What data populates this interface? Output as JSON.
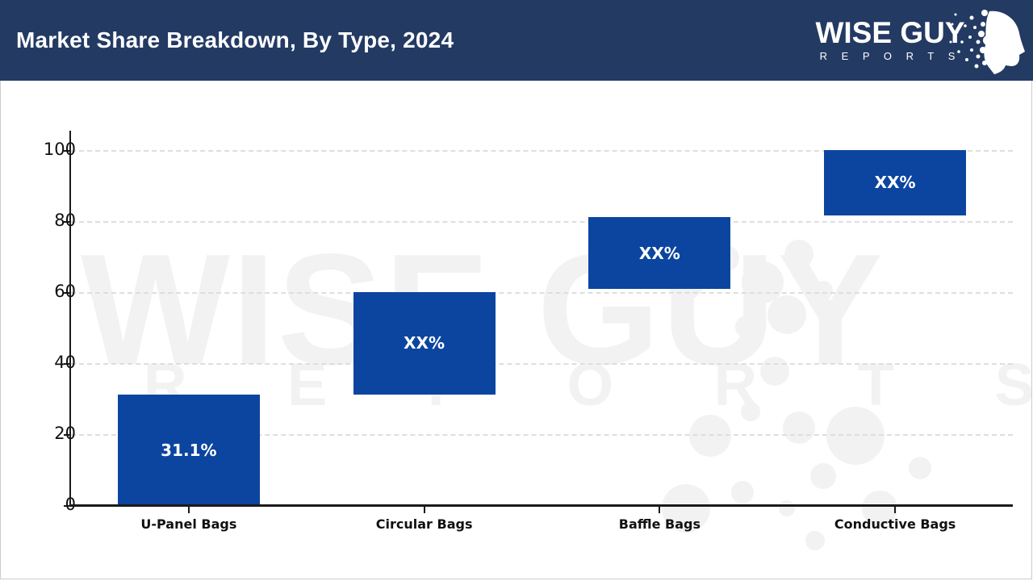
{
  "header": {
    "title": "Market Share Breakdown, By Type, 2024",
    "logo": {
      "line1": "WISE GUY",
      "line2": "R E P O R T S"
    }
  },
  "watermark": {
    "line1": "WISE GUY",
    "line2": "R E P O R T S"
  },
  "colors": {
    "header_bg": "#233a63",
    "bar": "#0b45a0",
    "grid": "#dedede",
    "watermark": "#f2f2f2",
    "axis": "#1a1a1a",
    "bar_label": "#ffffff"
  },
  "chart_data": {
    "type": "bar",
    "subtype": "waterfall",
    "title": "Market Share Breakdown, By Type, 2024",
    "xlabel": "",
    "ylabel": "",
    "categories": [
      "U-Panel Bags",
      "Circular Bags",
      "Baffle Bags",
      "Conductive Bags"
    ],
    "segments": [
      {
        "category": "U-Panel Bags",
        "start": 0,
        "end": 31.1,
        "label": "31.1%"
      },
      {
        "category": "Circular Bags",
        "start": 31.1,
        "end": 60.1,
        "label": "XX%"
      },
      {
        "category": "Baffle Bags",
        "start": 60.8,
        "end": 81.2,
        "label": "XX%"
      },
      {
        "category": "Conductive Bags",
        "start": 81.6,
        "end": 100,
        "label": "XX%"
      }
    ],
    "yticks": [
      0,
      20,
      40,
      60,
      80,
      100
    ],
    "ylim": [
      0,
      105
    ],
    "grid": "horizontal-dashed",
    "legend_position": "none"
  }
}
